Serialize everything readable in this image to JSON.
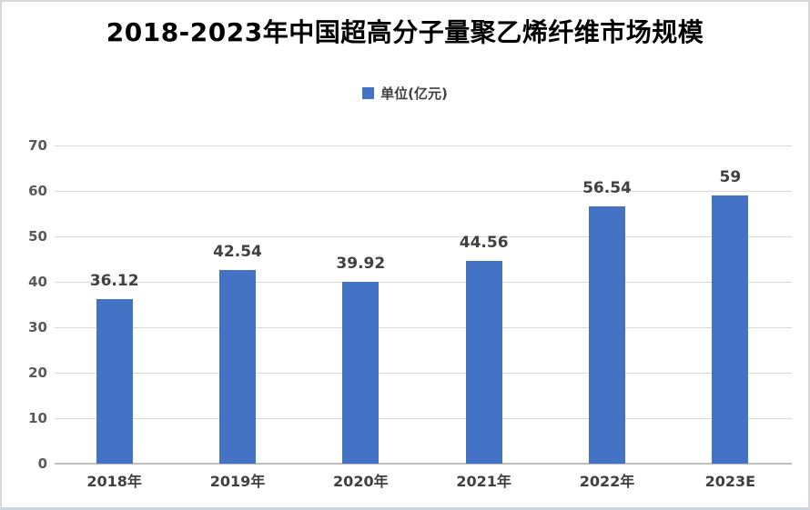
{
  "chart_data": {
    "type": "bar",
    "title": "2018-2023年中国超高分子量聚乙烯纤维市场规模",
    "legend": [
      {
        "label": "单位(亿元)",
        "color": "#4472c4"
      }
    ],
    "legend_position": "top",
    "categories": [
      "2018年",
      "2019年",
      "2020年",
      "2021年",
      "2022年",
      "2023E"
    ],
    "series": [
      {
        "name": "单位(亿元)",
        "values": [
          36.12,
          42.54,
          39.92,
          44.56,
          56.54,
          59
        ]
      }
    ],
    "value_labels": [
      "36.12",
      "42.54",
      "39.92",
      "44.56",
      "56.54",
      "59"
    ],
    "xlabel": "",
    "ylabel": "",
    "ylim": [
      0,
      70
    ],
    "yticks": [
      0,
      10,
      20,
      30,
      40,
      50,
      60,
      70
    ],
    "grid": true,
    "colors": {
      "bar": "#4472c4",
      "gridline": "#d9d9d9",
      "axis_line": "#bfbfbf",
      "ytick_text": "#595959",
      "xtick_text": "#404040",
      "value_text": "#404040",
      "title_text": "#000000"
    }
  }
}
